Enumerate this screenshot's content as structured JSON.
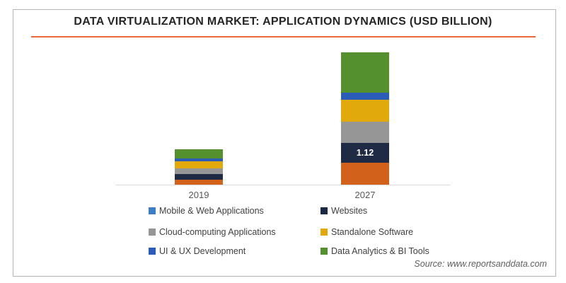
{
  "header": {
    "title": "DATA VIRTUALIZATION MARKET: APPLICATION DYNAMICS (USD BILLION)"
  },
  "source_note": "Source: www.reportsanddata.com",
  "colors": {
    "title_underline": "#e8673f",
    "frame_border": "#b5b5b5",
    "axis_line": "#dcdcdc",
    "title_text": "#262626",
    "axis_label_text": "#595959",
    "data_label_text": "#ffffff"
  },
  "chart_data": {
    "type": "bar",
    "subtype": "stacked-column",
    "title": "DATA VIRTUALIZATION MARKET: APPLICATION DYNAMICS (USD BILLION)",
    "xlabel": "",
    "ylabel": "USD Billion",
    "grid": false,
    "legend_position": "bottom",
    "categories": [
      "2019",
      "2027"
    ],
    "series": [
      {
        "name": "Mobile & Web Applications",
        "legend_color": "#3f7ec4",
        "bar_color": "#d2611c",
        "values": [
          0.29,
          1.22
        ]
      },
      {
        "name": "Websites",
        "legend_color": "#1b2a44",
        "bar_color": "#1f2b44",
        "values": [
          0.3,
          1.12
        ]
      },
      {
        "name": "Cloud-computing Applications",
        "legend_color": "#969696",
        "bar_color": "#969696",
        "values": [
          0.33,
          1.15
        ]
      },
      {
        "name": "Standalone Software",
        "legend_color": "#e2a90d",
        "bar_color": "#e2a90d",
        "values": [
          0.39,
          1.22
        ]
      },
      {
        "name": "UI & UX Development",
        "legend_color": "#2b5cb8",
        "bar_color": "#2b5cb8",
        "values": [
          0.16,
          0.42
        ]
      },
      {
        "name": "Data Analytics & BI Tools",
        "legend_color": "#55902f",
        "bar_color": "#55902f",
        "values": [
          0.5,
          2.23
        ]
      }
    ],
    "data_labels": [
      {
        "category": "2027",
        "series": "Websites",
        "text": "1.12"
      }
    ]
  }
}
